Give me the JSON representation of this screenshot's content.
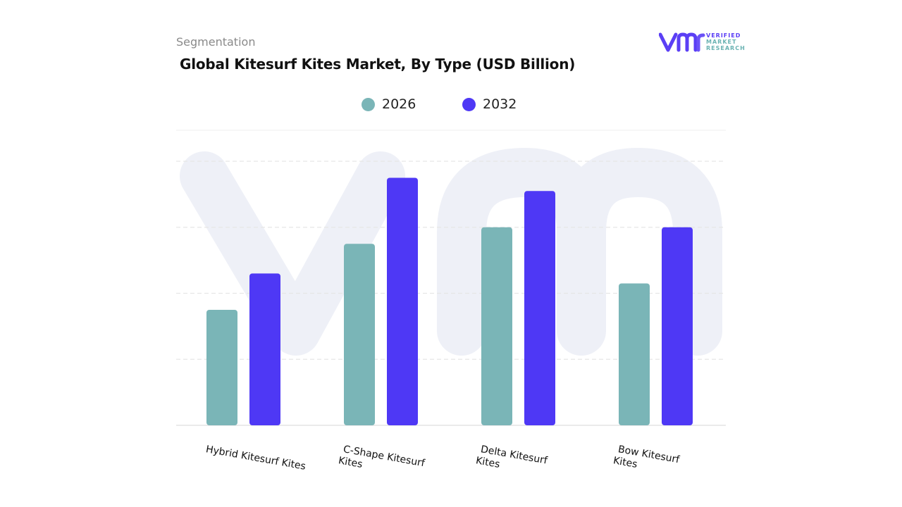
{
  "header": {
    "eyebrow": "Segmentation",
    "title": "Global Kitesurf Kites Market, By Type (USD Billion)"
  },
  "logo": {
    "icon": "vmr-logo-icon",
    "line1": "VERIFIED",
    "line2": "MARKET",
    "line3": "RESEARCH",
    "color_purple": "#5b3ff5",
    "color_teal": "#6bb3b3"
  },
  "colors": {
    "series_2026": "#7ab5b7",
    "series_2032": "#4e38f5",
    "gridline": "#e6e6e6",
    "watermark": "#eef0f7"
  },
  "chart_data": {
    "type": "bar",
    "title": "Global Kitesurf Kites Market, By Type (USD Billion)",
    "categories": [
      [
        "Hybrid Kitesurf Kites"
      ],
      [
        "C-Shape Kitesurf",
        "Kites"
      ],
      [
        "Delta Kitesurf",
        "Kites"
      ],
      [
        "Bow Kitesurf",
        "Kites"
      ]
    ],
    "series": [
      {
        "name": "2026",
        "values": [
          1.75,
          2.75,
          3.0,
          2.15
        ]
      },
      {
        "name": "2032",
        "values": [
          2.3,
          3.75,
          3.55,
          3.0
        ]
      }
    ],
    "ylim": [
      0,
      4
    ],
    "grid": true,
    "yaxis_labels_shown": false,
    "legend_position": "top-center"
  }
}
